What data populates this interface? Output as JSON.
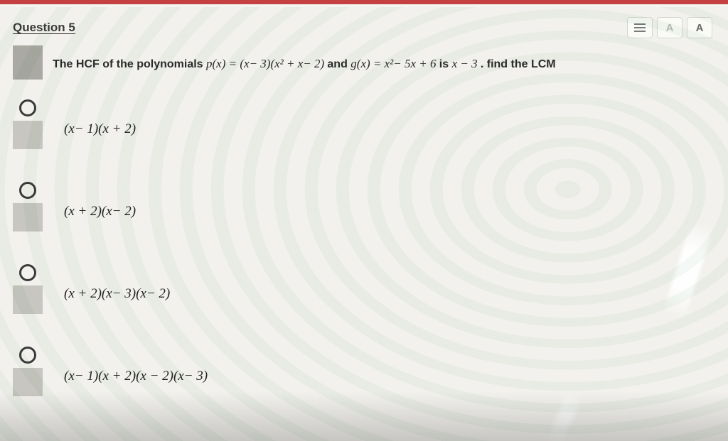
{
  "header": {
    "title": "Question 5",
    "tools": {
      "lines_label": "menu-lines",
      "small_a": "A",
      "big_a": "A"
    }
  },
  "stem": {
    "prefix": "The HCF of the polynomials ",
    "p_lhs": "p(x) = ",
    "p_rhs": "(x− 3)(x² + x− 2)",
    "mid": " and ",
    "g_lhs": "g(x) = ",
    "g_rhs": "x²− 5x + 6",
    "is_text": " is ",
    "hcf": "x − 3",
    "suffix": ". find the LCM"
  },
  "options": [
    {
      "text": "(x− 1)(x + 2)"
    },
    {
      "text": "(x + 2)(x− 2)"
    },
    {
      "text": "(x + 2)(x− 3)(x− 2)"
    },
    {
      "text": "(x− 1)(x + 2)(x − 2)(x− 3)"
    }
  ],
  "colors": {
    "topbar": "#c54040",
    "page_bg": "#f2f1ed",
    "grip": "#aaa9a3",
    "radio_grip": "#c7c6c0",
    "text": "#2a2a2a"
  }
}
